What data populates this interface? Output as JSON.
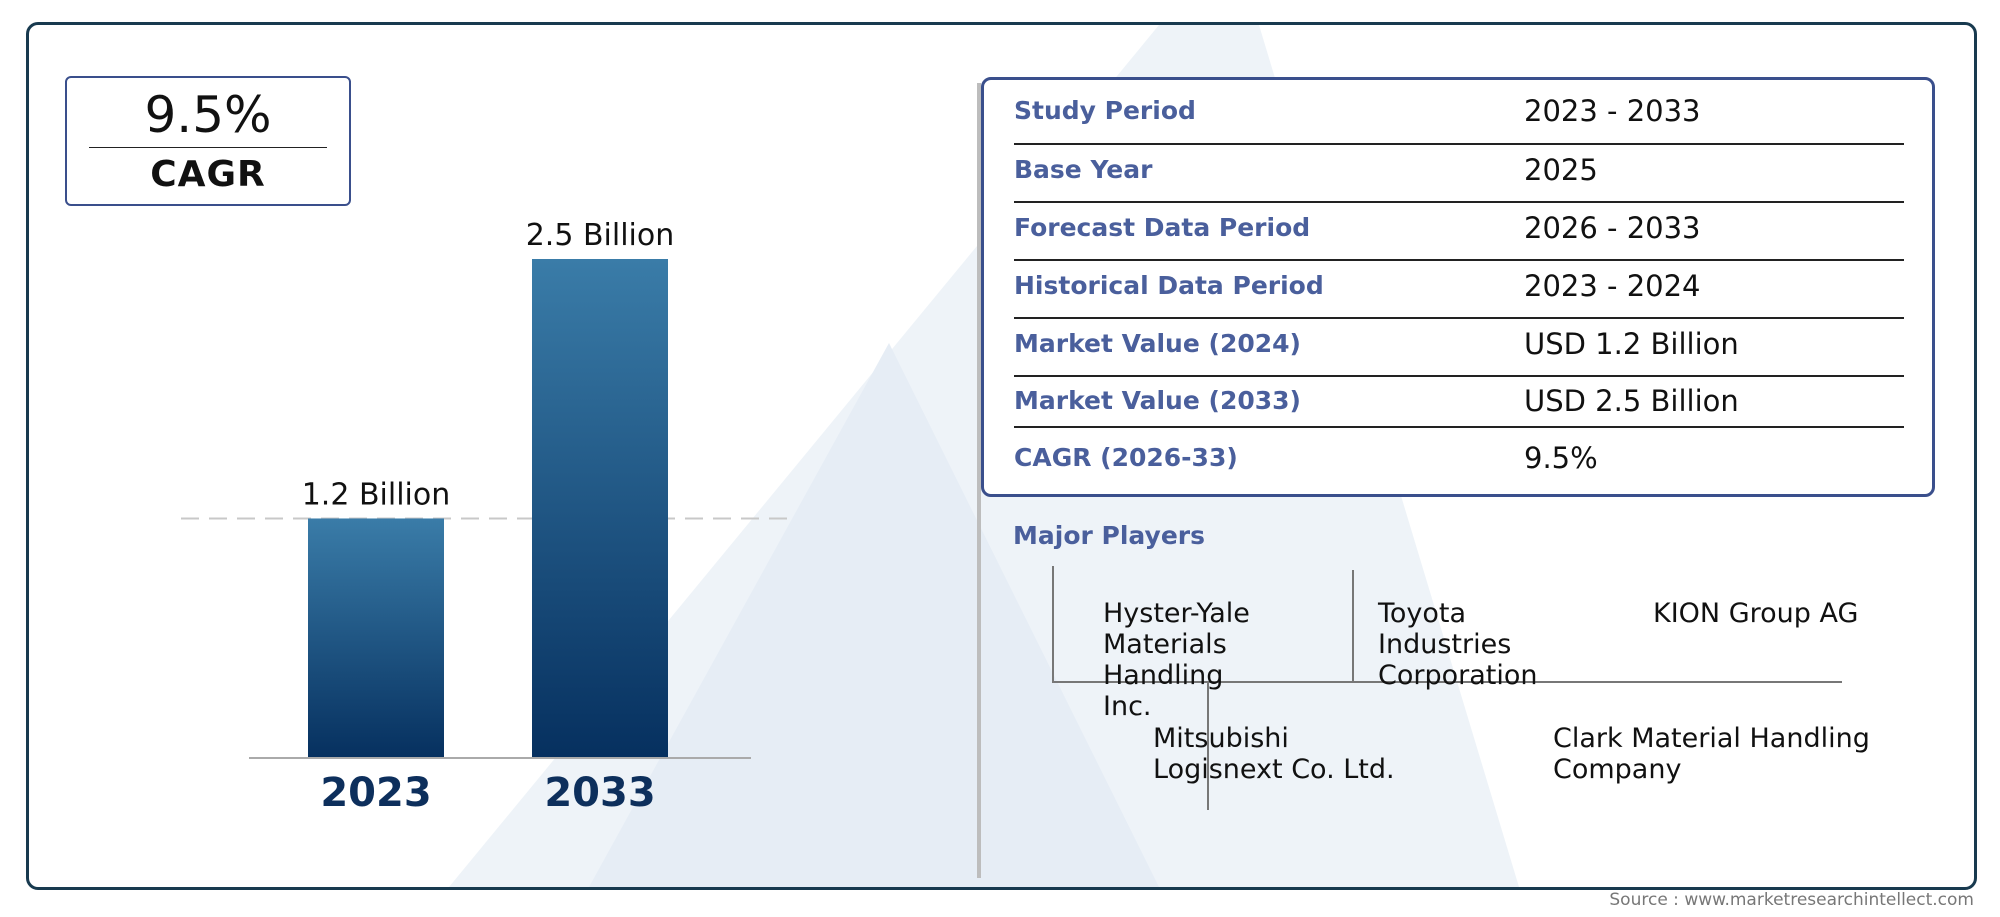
{
  "cagr_box": {
    "value": "9.5%",
    "label": "CAGR"
  },
  "chart_data": {
    "type": "bar",
    "categories": [
      "2023",
      "2033"
    ],
    "values": [
      1.2,
      2.5
    ],
    "data_labels": [
      "1.2 Billion",
      "2.5 Billion"
    ],
    "ylim": [
      0,
      2.5
    ],
    "title": "",
    "xlabel": "",
    "ylabel": "",
    "grid": false,
    "bar_color_top": "#3a7ca8",
    "bar_color_bottom": "#06305f",
    "reference_line": {
      "value": 1.2,
      "style": "dashed"
    }
  },
  "info_table": [
    {
      "key": "Study Period",
      "value": "2023 - 2033"
    },
    {
      "key": "Base Year",
      "value": "2025"
    },
    {
      "key": "Forecast Data Period",
      "value": "2026 - 2033"
    },
    {
      "key": "Historical Data Period",
      "value": "2023 - 2024"
    },
    {
      "key": "Market Value (2024)",
      "value": "USD 1.2 Billion"
    },
    {
      "key": "Market Value (2033)",
      "value": "USD 2.5 Billion"
    },
    {
      "key": "CAGR (2026-33)",
      "value": "9.5%"
    }
  ],
  "major_players": {
    "title": "Major Players",
    "players": [
      "Hyster-Yale Materials Handling Inc.",
      "Toyota Industries Corporation",
      "KION Group AG",
      "Mitsubishi Logisnext Co. Ltd.",
      "Clark Material Handling Company"
    ]
  },
  "source": "Source : www.marketresearchintellect.com",
  "colors": {
    "frame": "#183a4f",
    "accent": "#4a5f9c",
    "bar": "#1f5a8a"
  }
}
